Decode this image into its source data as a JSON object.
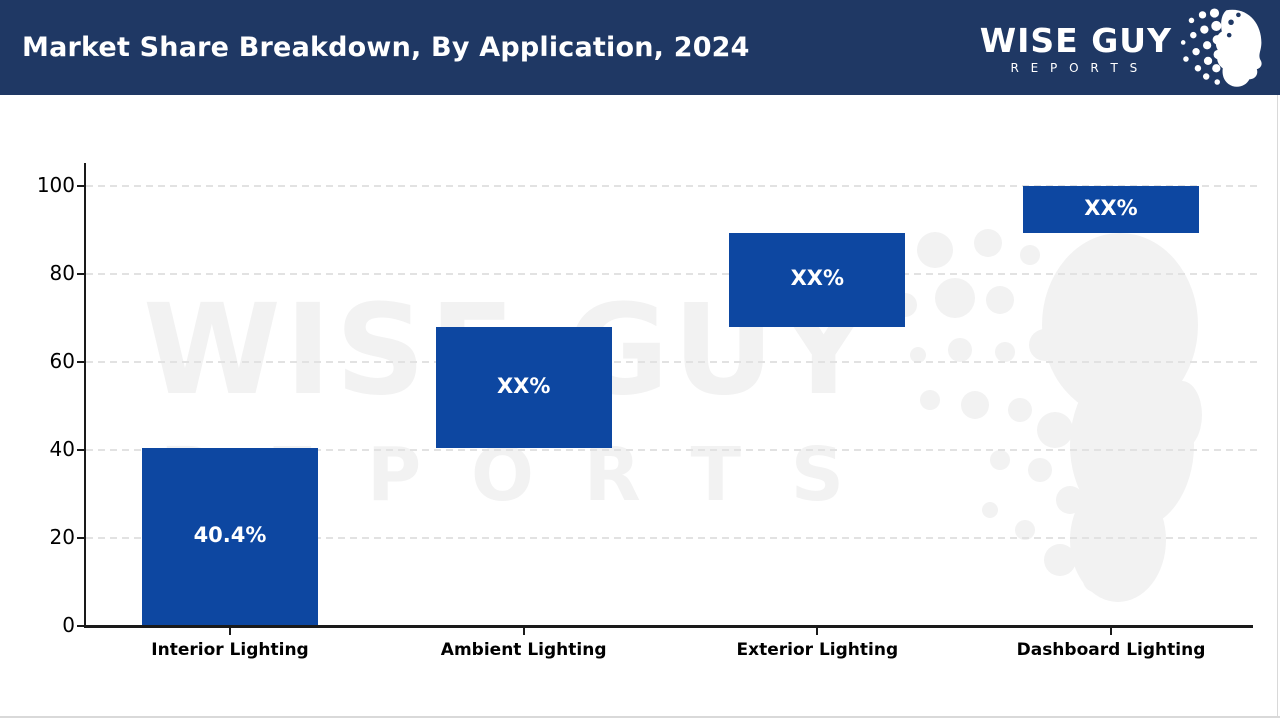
{
  "header": {
    "title": "Market Share Breakdown, By Application, 2024",
    "logo": {
      "name": "WISE GUY",
      "tagline": "R E P O R T S",
      "head_icon": "dotted-face-profile"
    }
  },
  "watermark": {
    "line1": "WISE GUY",
    "line2": "R E P O R T S",
    "head_icon": "dotted-face-profile"
  },
  "colors": {
    "header_bg": "#1f3864",
    "header_text": "#ffffff",
    "bar": "#0d47a1",
    "bar_label": "#ffffff",
    "axis": "#1a1a1a",
    "grid": "#e2e2e2",
    "watermark": "#f2f2f2",
    "frame_border": "#d9d9d9"
  },
  "chart_data": {
    "type": "bar",
    "subtype": "waterfall-market-share",
    "title": "Market Share Breakdown, By Application, 2024",
    "categories": [
      "Interior Lighting",
      "Ambient Lighting",
      "Exterior Lighting",
      "Dashboard Lighting"
    ],
    "segments": [
      {
        "category": "Interior Lighting",
        "start": 0,
        "end": 40.4,
        "value": 40.4,
        "label": "40.4%"
      },
      {
        "category": "Ambient Lighting",
        "start": 40.4,
        "end": 68.0,
        "value": 27.6,
        "label": "XX%"
      },
      {
        "category": "Exterior Lighting",
        "start": 68.0,
        "end": 89.3,
        "value": 21.3,
        "label": "XX%"
      },
      {
        "category": "Dashboard Lighting",
        "start": 89.3,
        "end": 100.0,
        "value": 10.7,
        "label": "XX%"
      }
    ],
    "yticks": [
      0,
      20,
      40,
      60,
      80,
      100
    ],
    "ylim": [
      0,
      105
    ],
    "xlabel": "",
    "ylabel": "",
    "grid": "horizontal-dashed",
    "legend": "none"
  }
}
